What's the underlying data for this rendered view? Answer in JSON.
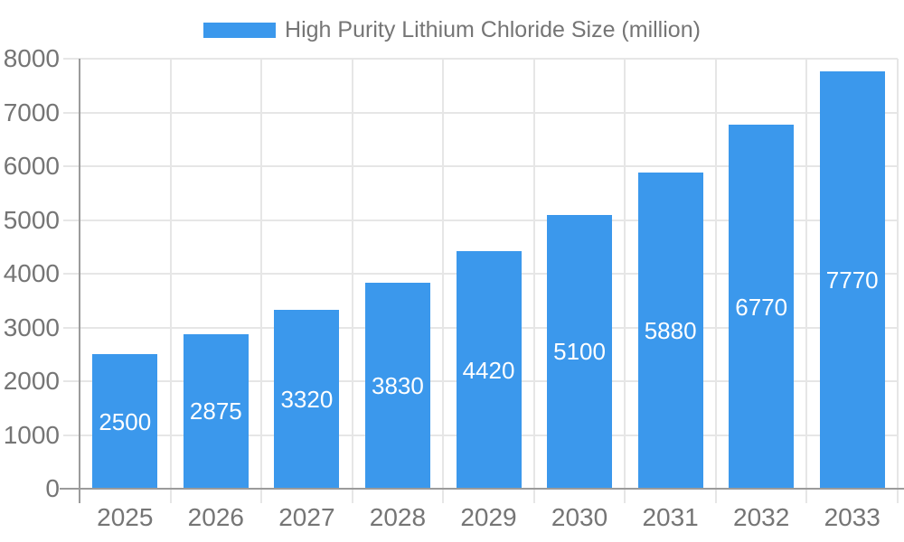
{
  "legend": {
    "title": "High Purity Lithium Chloride Size (million)"
  },
  "chart_data": {
    "type": "bar",
    "title": "High Purity Lithium Chloride Size (million)",
    "categories": [
      "2025",
      "2026",
      "2027",
      "2028",
      "2029",
      "2030",
      "2031",
      "2032",
      "2033"
    ],
    "values": [
      2500,
      2875,
      3320,
      3830,
      4420,
      5100,
      5880,
      6770,
      7770
    ],
    "series": [
      {
        "name": "High Purity Lithium Chloride Size (million)",
        "values": [
          2500,
          2875,
          3320,
          3830,
          4420,
          5100,
          5880,
          6770,
          7770
        ]
      }
    ],
    "xlabel": "",
    "ylabel": "",
    "ylim": [
      0,
      8000
    ],
    "ytick_step": 1000,
    "ytick_labels": [
      "0",
      "1000",
      "2000",
      "3000",
      "4000",
      "5000",
      "6000",
      "7000",
      "8000"
    ],
    "grid": true,
    "legend_position": "top-center",
    "value_labels": "inside-center",
    "colors": {
      "bar": "#3b98ec",
      "value_label": "#ffffff",
      "axis_label": "#757575",
      "axis_line": "#9b9b9b",
      "gridline": "#e6e6e6",
      "background": "#ffffff"
    }
  }
}
